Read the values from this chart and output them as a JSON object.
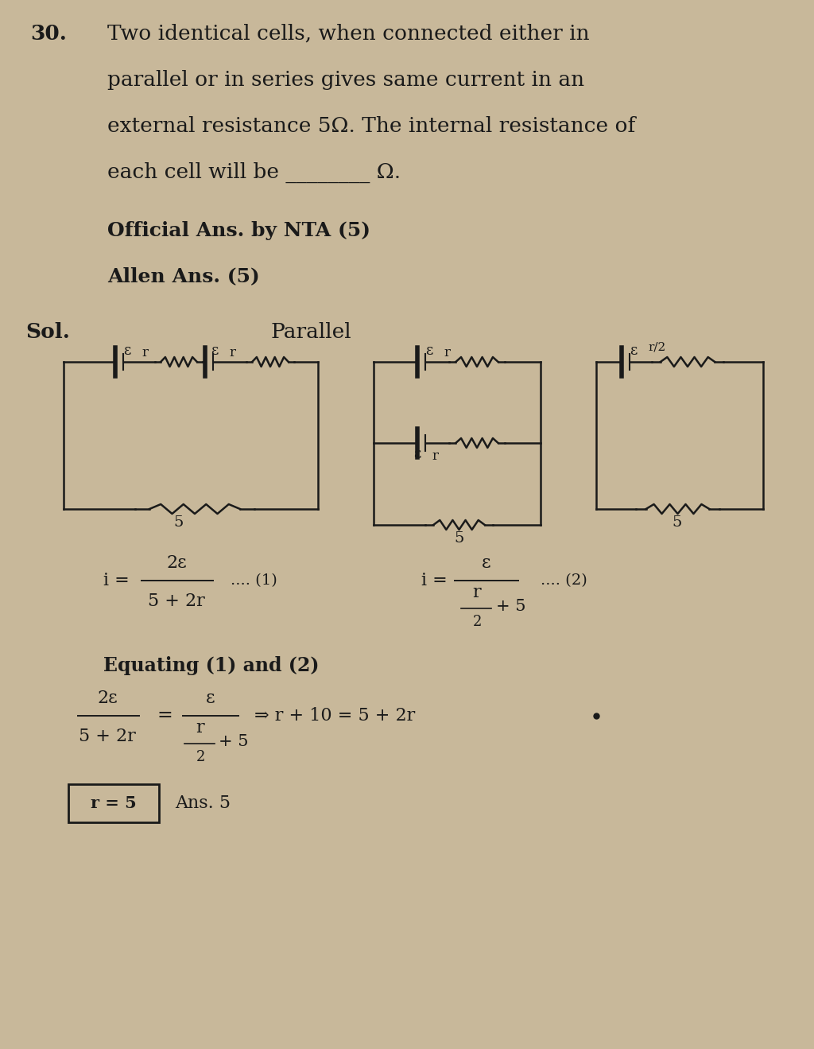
{
  "bg_color": "#c8b89a",
  "text_color": "#1a1a1a",
  "title_num": "30.",
  "line1": "Two identical cells, when connected either in",
  "line2": "parallel or in series gives same current in an",
  "line3": "external resistance 5Ω. The internal resistance of",
  "line4": "each cell will be ________ Ω.",
  "official_ans": "Official Ans. by NTA (5)",
  "allen_ans": "Allen Ans. (5)",
  "sol_label": "Sol.",
  "parallel_label": "Parallel",
  "equating": "Equating (1) and (2)",
  "answer": "r = 5",
  "ans_label": "Ans. 5"
}
